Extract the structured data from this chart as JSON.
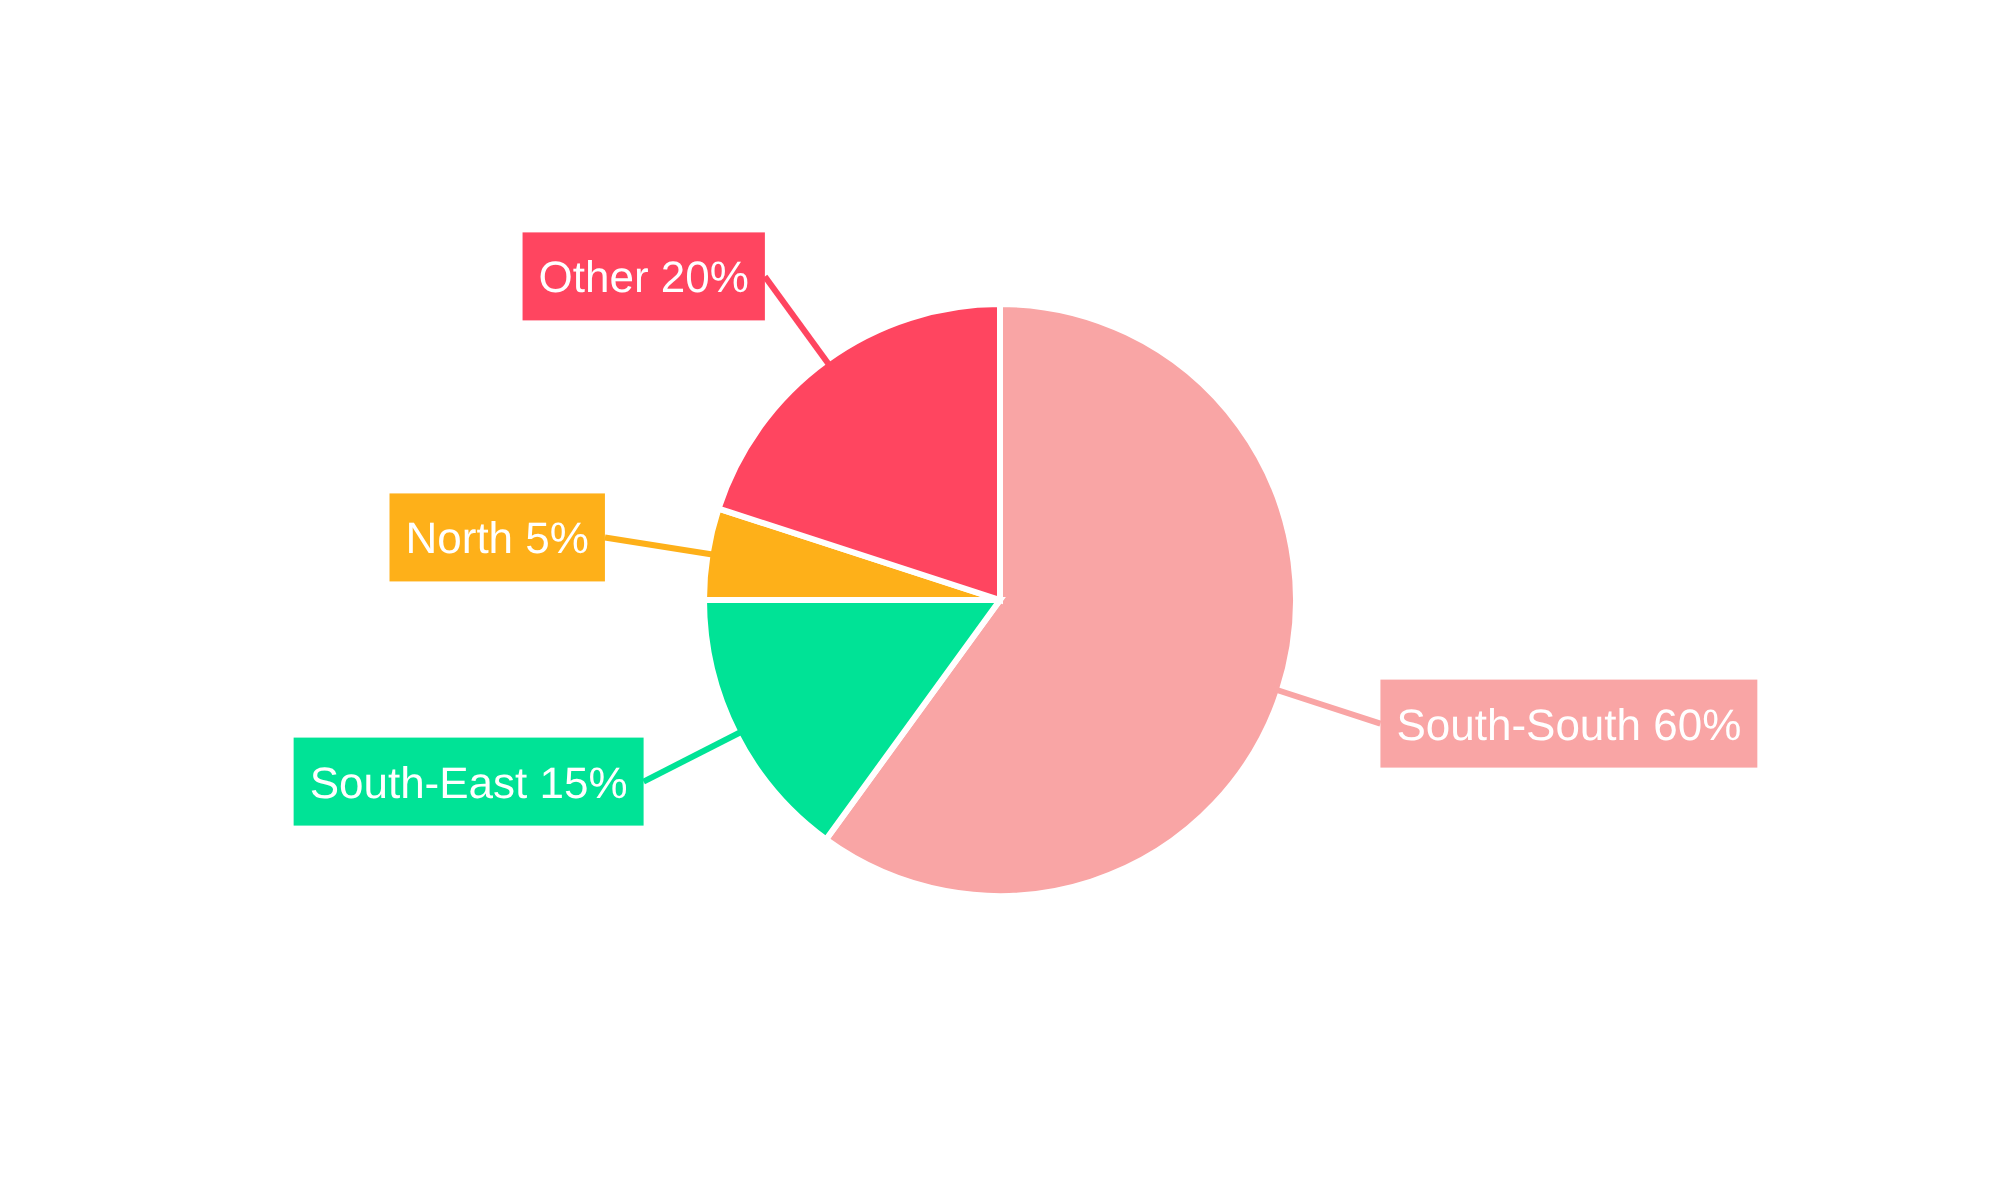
{
  "chart_data": {
    "type": "pie",
    "categories": [
      "South-South",
      "South-East",
      "North",
      "Other"
    ],
    "values": [
      60,
      15,
      5,
      20
    ],
    "value_labels": [
      "60%",
      "15%",
      "5%",
      "20%"
    ],
    "colors": [
      "#f9a5a5",
      "#00e396",
      "#feb019",
      "#ff4560"
    ]
  }
}
